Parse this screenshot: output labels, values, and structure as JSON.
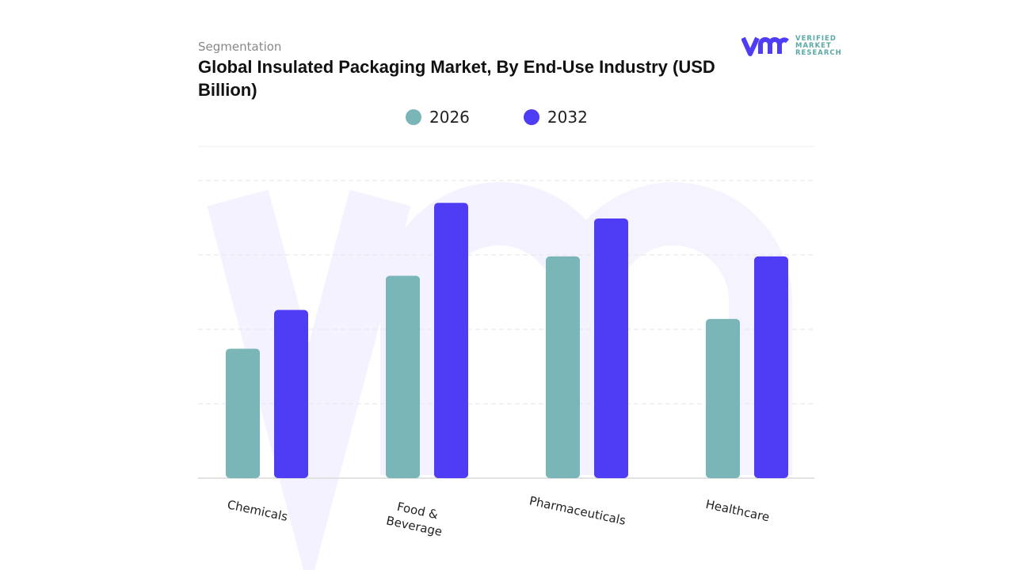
{
  "header": {
    "segment_label": "Segmentation",
    "title": "Global Insulated Packaging Market, By End-Use Industry (USD Billion)"
  },
  "logo": {
    "line1": "VERIFIED",
    "line2": "MARKET",
    "line3": "RESEARCH"
  },
  "chart_data": {
    "type": "bar",
    "title": "Global Insulated Packaging Market, By End-Use Industry (USD Billion)",
    "categories": [
      "Chemicals",
      "Food & Beverage",
      "Pharmaceuticals",
      "Healthcare"
    ],
    "series": [
      {
        "name": "2026",
        "color": "#7ab5b8",
        "values": [
          1.74,
          2.72,
          2.98,
          2.14
        ]
      },
      {
        "name": "2032",
        "color": "#4f3cf5",
        "values": [
          2.26,
          3.7,
          3.49,
          2.98
        ]
      }
    ],
    "ylim": [
      0,
      4
    ],
    "grid": true,
    "legend": "top-center",
    "y_axis_labels": "none",
    "note_values": "relative estimates; no value axis printed"
  }
}
